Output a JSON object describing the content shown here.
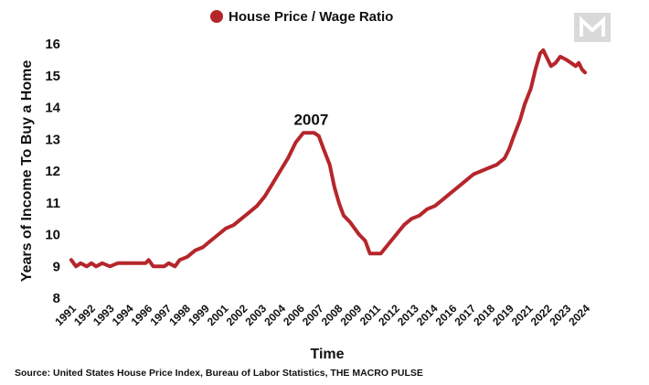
{
  "source": "Source:  United States House Price Index, Bureau of Labor Statistics, THE MACRO PULSE",
  "chart_data": {
    "type": "line",
    "legend": "House Price / Wage Ratio",
    "legend_position": "top-center",
    "color": "#b5262b",
    "xlabel": "Time",
    "ylabel": "Years of Income To Buy a Home",
    "ylim": [
      8,
      16
    ],
    "yticks": [
      8,
      9,
      10,
      11,
      12,
      13,
      14,
      15,
      16
    ],
    "grid": false,
    "x_ticks": [
      "1991",
      "1992",
      "1993",
      "1994",
      "1996",
      "1997",
      "1998",
      "1999",
      "2001",
      "2002",
      "2003",
      "2004",
      "2006",
      "2007",
      "2008",
      "2009",
      "2011",
      "2012",
      "2013",
      "2014",
      "2016",
      "2017",
      "2018",
      "2019",
      "2021",
      "2022",
      "2023",
      "2024"
    ],
    "annotations": [
      {
        "text": "2007",
        "x": 2006.5,
        "y": 13.2
      }
    ],
    "series": [
      {
        "name": "House Price / Wage Ratio",
        "x": [
          1991.0,
          1991.3,
          1991.6,
          1992.0,
          1992.3,
          1992.6,
          1993.0,
          1993.5,
          1994.0,
          1995.0,
          1995.8,
          1996.0,
          1996.3,
          1997.0,
          1997.3,
          1997.7,
          1998.0,
          1998.5,
          1999.0,
          1999.5,
          2000.0,
          2000.5,
          2001.0,
          2001.5,
          2002.0,
          2002.5,
          2003.0,
          2003.5,
          2004.0,
          2004.5,
          2005.0,
          2005.5,
          2006.0,
          2006.3,
          2006.7,
          2007.0,
          2007.3,
          2007.7,
          2008.0,
          2008.3,
          2008.6,
          2009.0,
          2009.3,
          2009.6,
          2010.0,
          2010.3,
          2010.6,
          2011.0,
          2011.5,
          2012.0,
          2012.5,
          2013.0,
          2013.5,
          2014.0,
          2014.5,
          2015.0,
          2015.5,
          2016.0,
          2016.5,
          2017.0,
          2017.5,
          2018.0,
          2018.5,
          2019.0,
          2019.3,
          2019.6,
          2020.0,
          2020.3,
          2020.7,
          2021.0,
          2021.3,
          2021.5,
          2021.8,
          2022.0,
          2022.3,
          2022.6,
          2023.0,
          2023.3,
          2023.6,
          2023.8,
          2024.0,
          2024.2
        ],
        "values": [
          9.2,
          9.0,
          9.1,
          9.0,
          9.1,
          9.0,
          9.1,
          9.0,
          9.1,
          9.1,
          9.1,
          9.2,
          9.0,
          9.0,
          9.1,
          9.0,
          9.2,
          9.3,
          9.5,
          9.6,
          9.8,
          10.0,
          10.2,
          10.3,
          10.5,
          10.7,
          10.9,
          11.2,
          11.6,
          12.0,
          12.4,
          12.9,
          13.2,
          13.2,
          13.2,
          13.1,
          12.7,
          12.2,
          11.5,
          11.0,
          10.6,
          10.4,
          10.2,
          10.0,
          9.8,
          9.4,
          9.4,
          9.4,
          9.7,
          10.0,
          10.3,
          10.5,
          10.6,
          10.8,
          10.9,
          11.1,
          11.3,
          11.5,
          11.7,
          11.9,
          12.0,
          12.1,
          12.2,
          12.4,
          12.7,
          13.1,
          13.6,
          14.1,
          14.6,
          15.2,
          15.7,
          15.8,
          15.5,
          15.3,
          15.4,
          15.6,
          15.5,
          15.4,
          15.3,
          15.4,
          15.2,
          15.1
        ]
      }
    ]
  }
}
